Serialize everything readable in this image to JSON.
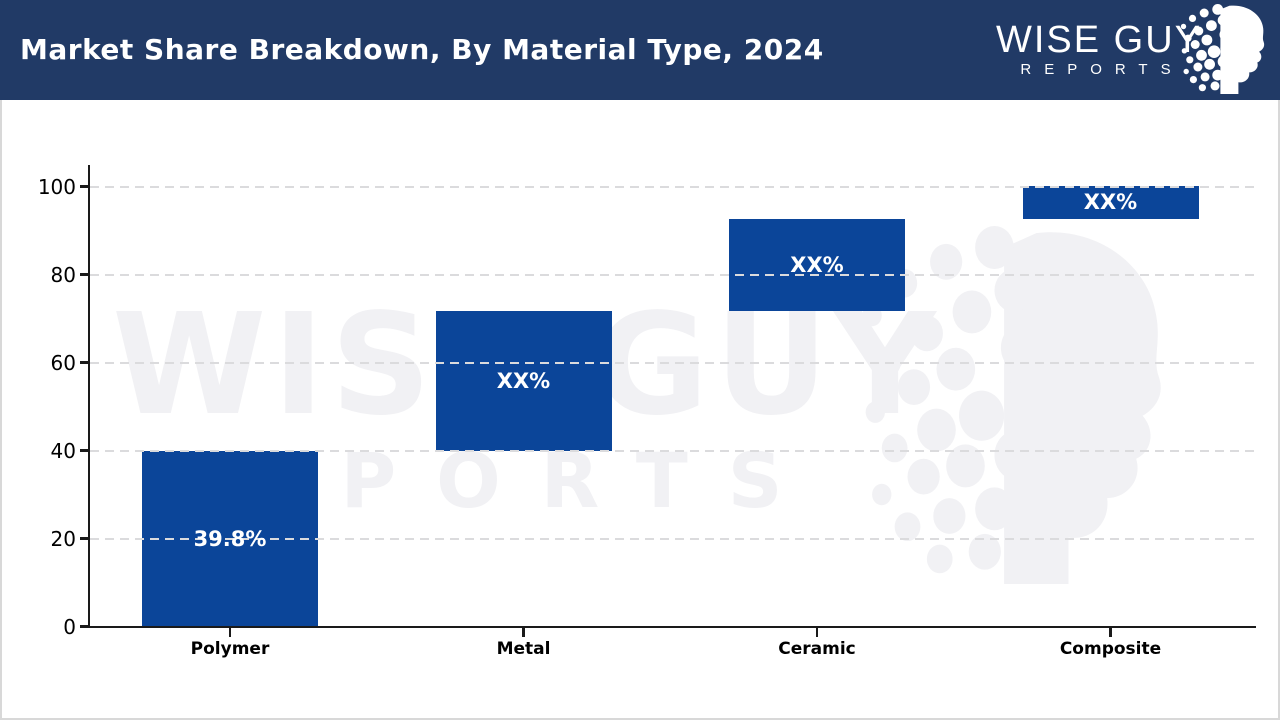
{
  "header": {
    "title": "Market Share Breakdown, By Material Type, 2024",
    "logo": {
      "line1": "WISE GUY",
      "line2": "REPORTS",
      "icon": "dotted-face-profile"
    }
  },
  "watermark": {
    "line1": "WISE GUY",
    "line2": "REPORTS",
    "icon": "dotted-face-profile"
  },
  "colors": {
    "header_bg": "#213a66",
    "bar": "#0b4599",
    "grid": "#dbdbdd",
    "axis": "#1a1a1a",
    "watermark": "#f1f1f4",
    "bar_label": "#ffffff",
    "title_text": "#ffffff"
  },
  "chart_data": {
    "type": "bar",
    "subtype": "waterfall",
    "title": "Market Share Breakdown, By Material Type, 2024",
    "xlabel": "",
    "ylabel": "",
    "categories": [
      "Polymer",
      "Metal",
      "Ceramic",
      "Composite"
    ],
    "segments": [
      {
        "category": "Polymer",
        "start": 0,
        "end": 39.8,
        "label": "39.8%"
      },
      {
        "category": "Metal",
        "start": 39.8,
        "end": 71.7,
        "label": "XX%"
      },
      {
        "category": "Ceramic",
        "start": 71.7,
        "end": 92.7,
        "label": "XX%"
      },
      {
        "category": "Composite",
        "start": 92.7,
        "end": 100.2,
        "label": "XX%"
      }
    ],
    "yticks": [
      0,
      20,
      40,
      60,
      80,
      100
    ],
    "ylim": [
      0,
      105
    ],
    "grid": "horizontal-dashed",
    "legend": "none"
  }
}
